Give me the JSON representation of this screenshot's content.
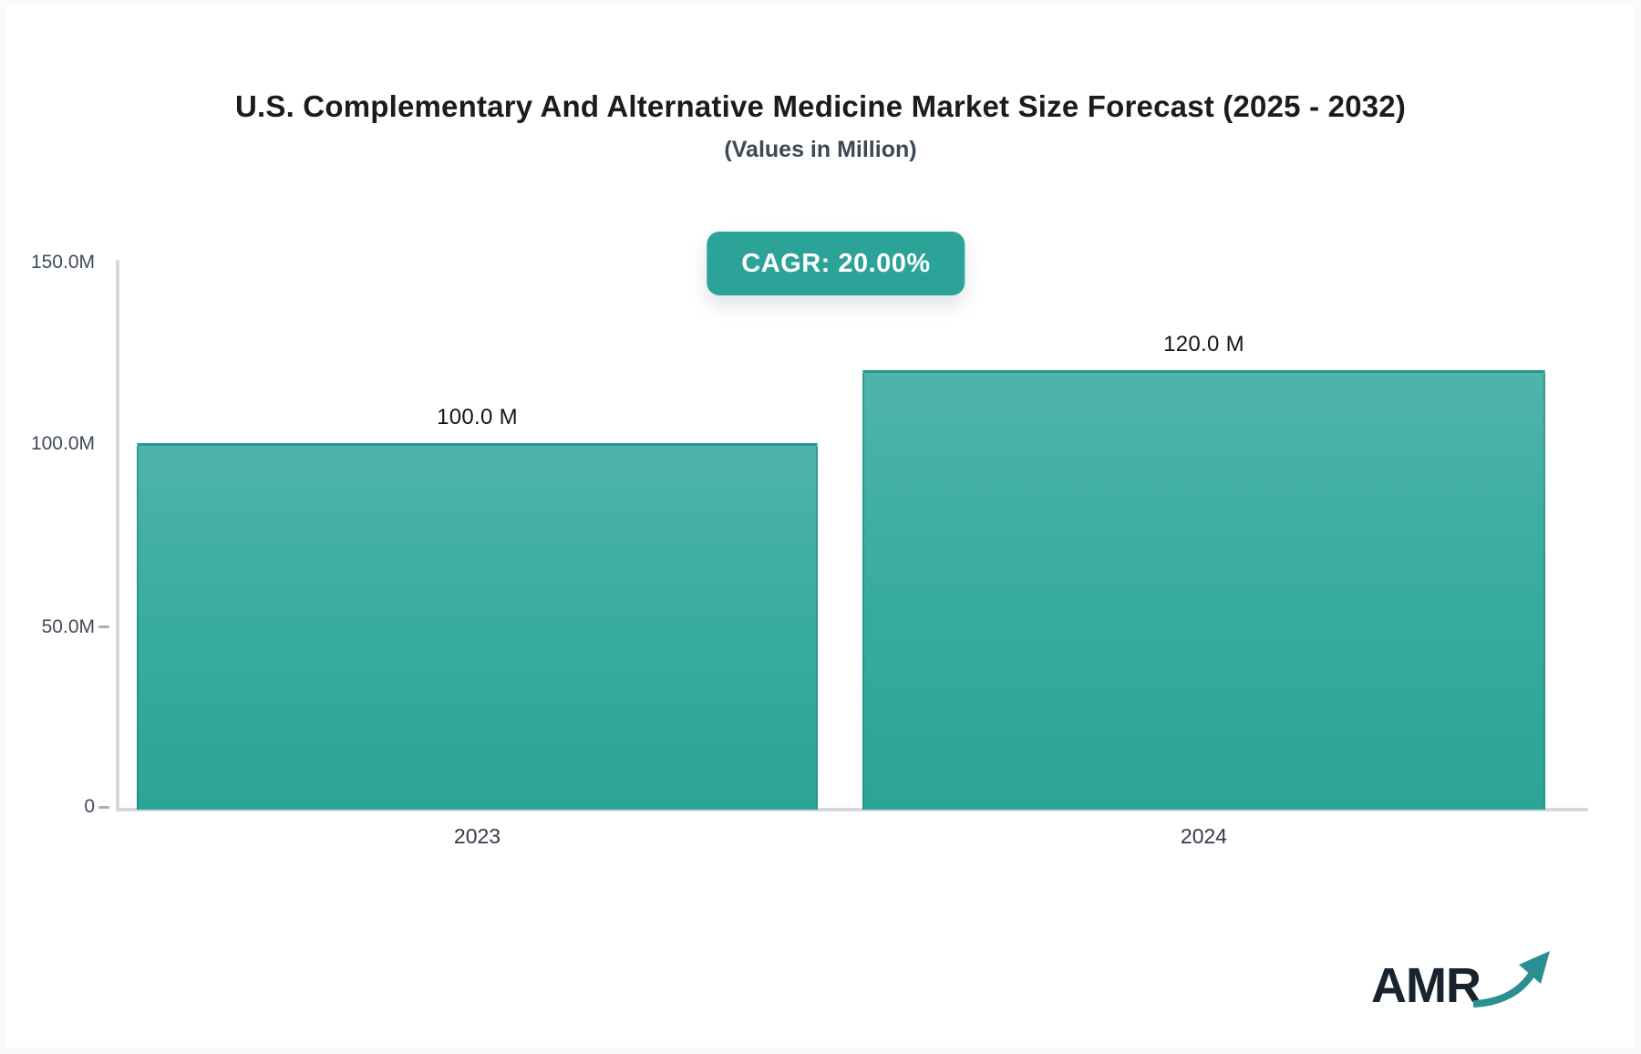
{
  "header": {
    "title": "U.S. Complementary And Alternative Medicine Market Size Forecast (2025 - 2032)",
    "subtitle": "(Values in Million)",
    "cagr_label": "CAGR: 20.00%",
    "cagr_value": "20.00%"
  },
  "chart_data": {
    "type": "bar",
    "title": "U.S. Complementary And Alternative Medicine Market Size Forecast (2025 - 2032)",
    "subtitle": "(Values in Million)",
    "categories": [
      "2023",
      "2024"
    ],
    "values": [
      100.0,
      120.0
    ],
    "data_labels": [
      "100.0 M",
      "120.0 M"
    ],
    "xlabel": "",
    "ylabel": "",
    "ylim": [
      0,
      150
    ],
    "yticks": [
      {
        "label": "150.0M",
        "value": 150
      },
      {
        "label": "100.0M",
        "value": 100
      },
      {
        "label": "50.0M",
        "value": 50
      },
      {
        "label": "0",
        "value": 0
      }
    ],
    "grid": false,
    "legend": "none",
    "bar_color_top": "#4fb4aa",
    "bar_color_bottom": "#2ba496",
    "bar_border_color": "#27968d",
    "axis_color": "#d5d9df",
    "cagr_badge_color": "#2ca398"
  },
  "logo": {
    "text": "AMR",
    "arrow_color": "#2a8f92",
    "text_color": "#18232e"
  }
}
